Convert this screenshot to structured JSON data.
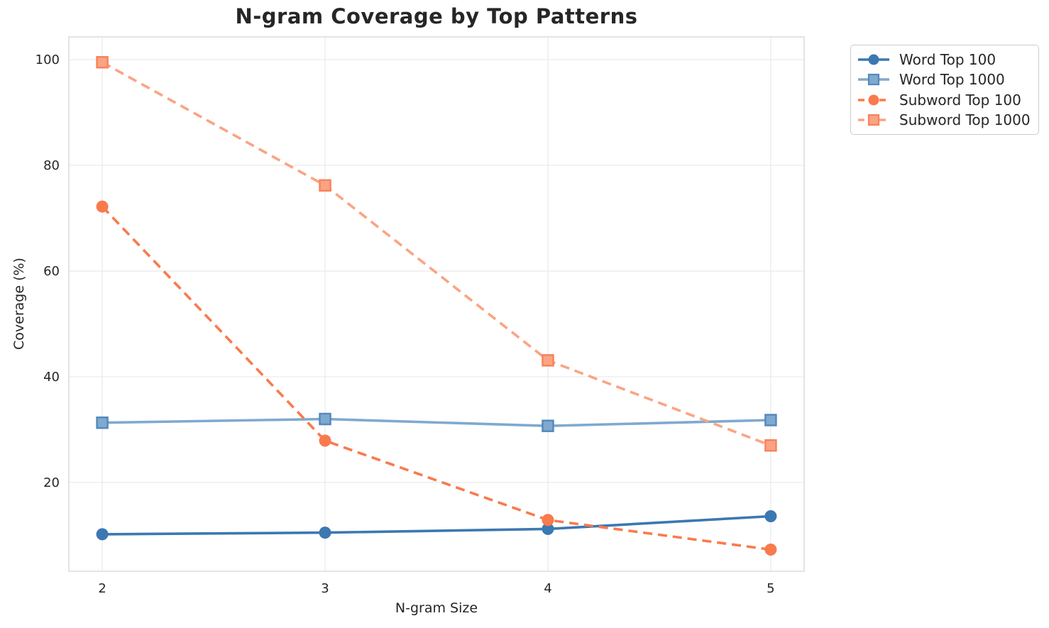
{
  "title": "N-gram Coverage by Top Patterns",
  "chart_data": {
    "type": "line",
    "x": [
      2,
      3,
      4,
      5
    ],
    "xlabel": "N-gram Size",
    "ylabel": "Coverage (%)",
    "xticks": [
      2,
      3,
      4,
      5
    ],
    "yticks": [
      20,
      40,
      60,
      80,
      100
    ],
    "xlim": [
      1.85,
      5.15
    ],
    "ylim": [
      3.2,
      104.3
    ],
    "grid": true,
    "legend_position": "upper-right-outside",
    "series": [
      {
        "name": "Word Top 100",
        "values": [
          10.2,
          10.5,
          11.2,
          13.6
        ],
        "color": "#3c78b1",
        "edge_color": "#3c78b1",
        "line": "solid",
        "marker": "circle"
      },
      {
        "name": "Word Top 1000",
        "values": [
          31.3,
          32.0,
          30.7,
          31.8
        ],
        "color": "#7fa9ce",
        "edge_color": "#5589bd",
        "line": "solid",
        "marker": "square"
      },
      {
        "name": "Subword Top 100",
        "values": [
          72.2,
          27.9,
          12.9,
          7.3
        ],
        "color": "#f97a4d",
        "edge_color": "#f97a4d",
        "line": "dashed",
        "marker": "circle"
      },
      {
        "name": "Subword Top 1000",
        "values": [
          99.5,
          76.2,
          43.1,
          27.0
        ],
        "color": "#faa483",
        "edge_color": "#f8835c",
        "line": "dashed",
        "marker": "square"
      }
    ]
  },
  "colors": {
    "background": "#ffffff",
    "text": "#262626",
    "grid": "#ebebeb",
    "spine": "#d9d9d9",
    "legend_border": "#cccccc"
  }
}
